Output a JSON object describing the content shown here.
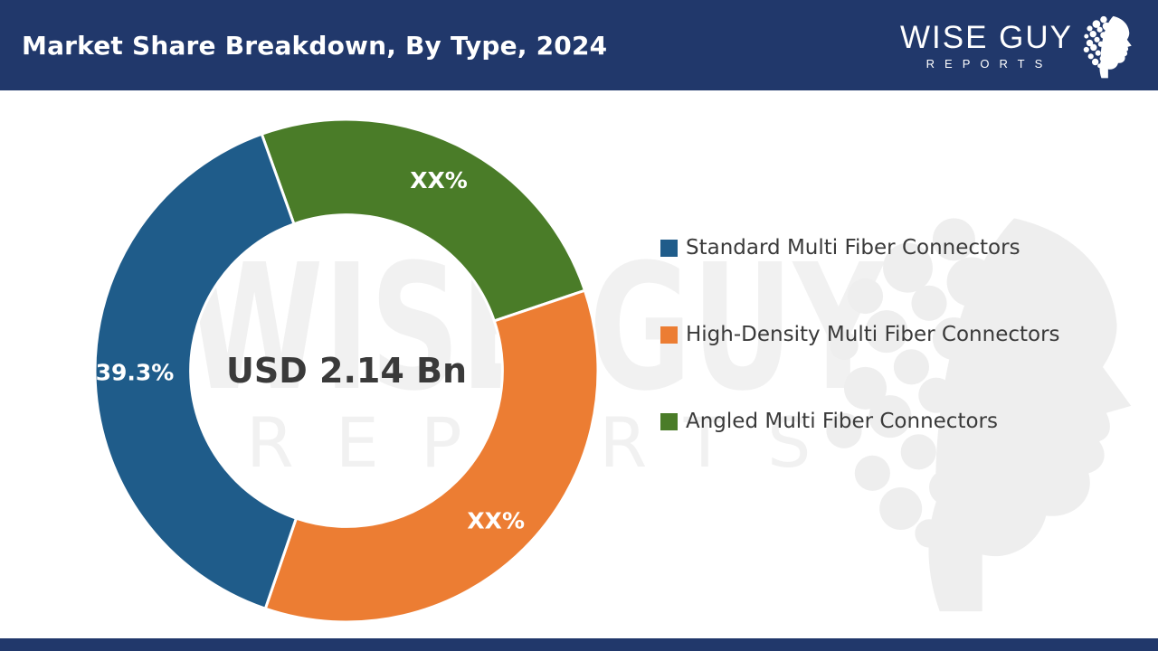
{
  "colors": {
    "brand_navy": "#21386B",
    "text_dark": "#3A3A3A",
    "watermark_gray": "#F1F1F1"
  },
  "header": {
    "title": "Market Share Breakdown, By Type, 2024",
    "logo_line1": "WISE GUY",
    "logo_line2": "REPORTS"
  },
  "watermark": {
    "line1": "WISE GUY",
    "line2": "REPORTS"
  },
  "chart_data": {
    "type": "pie",
    "subtype": "donut",
    "title": "Market Share Breakdown, By Type, 2024",
    "center_label": "USD 2.14 Bn",
    "legend_position": "right",
    "start_angle_deg": -19.7,
    "clockwise": true,
    "inner_radius_ratio": 0.62,
    "slices": [
      {
        "label": "Standard Multi Fiber Connectors",
        "value_pct": 39.3,
        "display": "39.3%",
        "color": "#1F5C8A",
        "draw_order": 2
      },
      {
        "label": "High-Density Multi Fiber Connectors",
        "value_pct": 35.4,
        "display": "XX%",
        "color": "#EC7D33",
        "draw_order": 1
      },
      {
        "label": "Angled Multi Fiber Connectors",
        "value_pct": 25.3,
        "display": "XX%",
        "color": "#4A7C28",
        "draw_order": 0
      }
    ]
  }
}
